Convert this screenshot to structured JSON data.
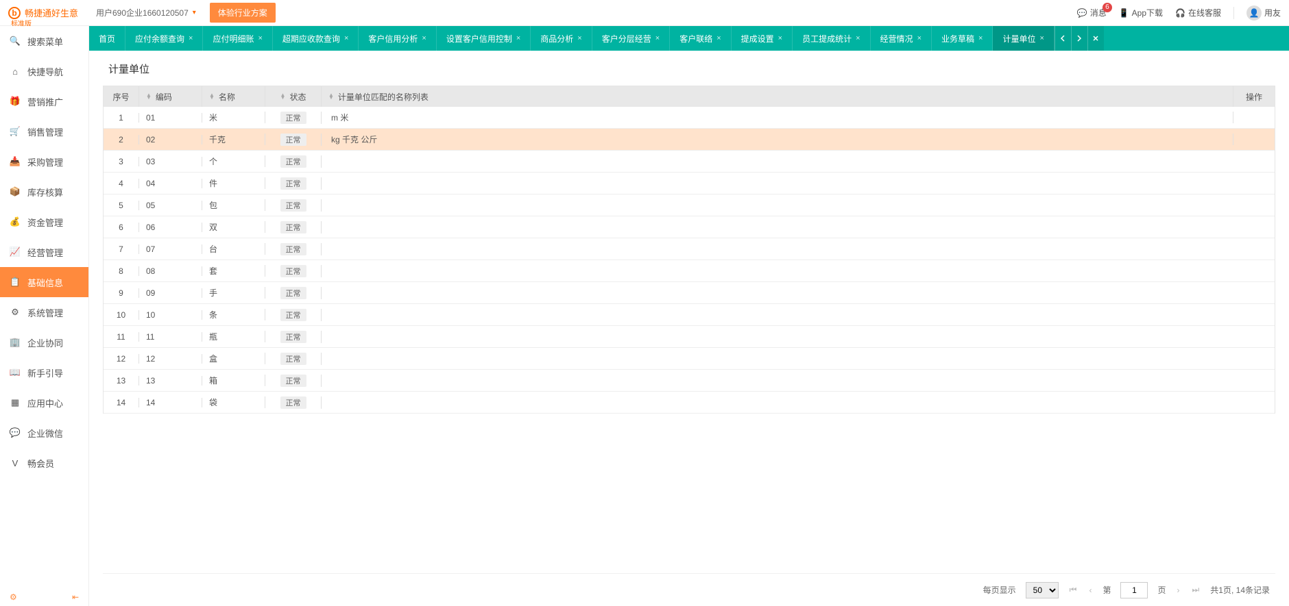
{
  "brand": {
    "name": "畅捷通好生意",
    "edition": "标准版"
  },
  "tenant": "用户690企业1660120507",
  "cta_button": "体验行业方案",
  "header_right": {
    "message": "消息",
    "message_badge": "6",
    "app": "App下载",
    "service": "在线客服",
    "user": "用友"
  },
  "tabs": [
    {
      "label": "首页",
      "closable": false
    },
    {
      "label": "应付余额查询",
      "closable": true
    },
    {
      "label": "应付明细账",
      "closable": true
    },
    {
      "label": "超期应收款查询",
      "closable": true
    },
    {
      "label": "客户信用分析",
      "closable": true
    },
    {
      "label": "设置客户信用控制",
      "closable": true
    },
    {
      "label": "商品分析",
      "closable": true
    },
    {
      "label": "客户分层经营",
      "closable": true
    },
    {
      "label": "客户联络",
      "closable": true
    },
    {
      "label": "提成设置",
      "closable": true
    },
    {
      "label": "员工提成统计",
      "closable": true
    },
    {
      "label": "经营情况",
      "closable": true
    },
    {
      "label": "业务草稿",
      "closable": true
    },
    {
      "label": "计量单位",
      "closable": true,
      "active": true
    }
  ],
  "sidebar": [
    "搜索菜单",
    "快捷导航",
    "营销推广",
    "销售管理",
    "采购管理",
    "库存核算",
    "资金管理",
    "经营管理",
    "基础信息",
    "系统管理",
    "企业协同",
    "新手引导",
    "应用中心",
    "企业微信",
    "畅会员"
  ],
  "sidebar_active_index": 8,
  "page_title": "计量单位",
  "columns": {
    "seq": "序号",
    "code": "编码",
    "name": "名称",
    "status": "状态",
    "alias": "计量单位匹配的名称列表",
    "op": "操作"
  },
  "status_label": "正常",
  "rows": [
    {
      "seq": 1,
      "code": "01",
      "name": "米",
      "alias": "m 米"
    },
    {
      "seq": 2,
      "code": "02",
      "name": "千克",
      "alias": "kg 千克 公斤",
      "highlight": true
    },
    {
      "seq": 3,
      "code": "03",
      "name": "个",
      "alias": ""
    },
    {
      "seq": 4,
      "code": "04",
      "name": "件",
      "alias": ""
    },
    {
      "seq": 5,
      "code": "05",
      "name": "包",
      "alias": ""
    },
    {
      "seq": 6,
      "code": "06",
      "name": "双",
      "alias": ""
    },
    {
      "seq": 7,
      "code": "07",
      "name": "台",
      "alias": ""
    },
    {
      "seq": 8,
      "code": "08",
      "name": "套",
      "alias": ""
    },
    {
      "seq": 9,
      "code": "09",
      "name": "手",
      "alias": ""
    },
    {
      "seq": 10,
      "code": "10",
      "name": "条",
      "alias": ""
    },
    {
      "seq": 11,
      "code": "11",
      "name": "瓶",
      "alias": ""
    },
    {
      "seq": 12,
      "code": "12",
      "name": "盒",
      "alias": ""
    },
    {
      "seq": 13,
      "code": "13",
      "name": "箱",
      "alias": ""
    },
    {
      "seq": 14,
      "code": "14",
      "name": "袋",
      "alias": ""
    }
  ],
  "pagination": {
    "per_page_label": "每页显示",
    "per_page_value": "50",
    "page_prefix": "第",
    "page_value": "1",
    "page_suffix": "页",
    "summary": "共1页, 14条记录"
  }
}
